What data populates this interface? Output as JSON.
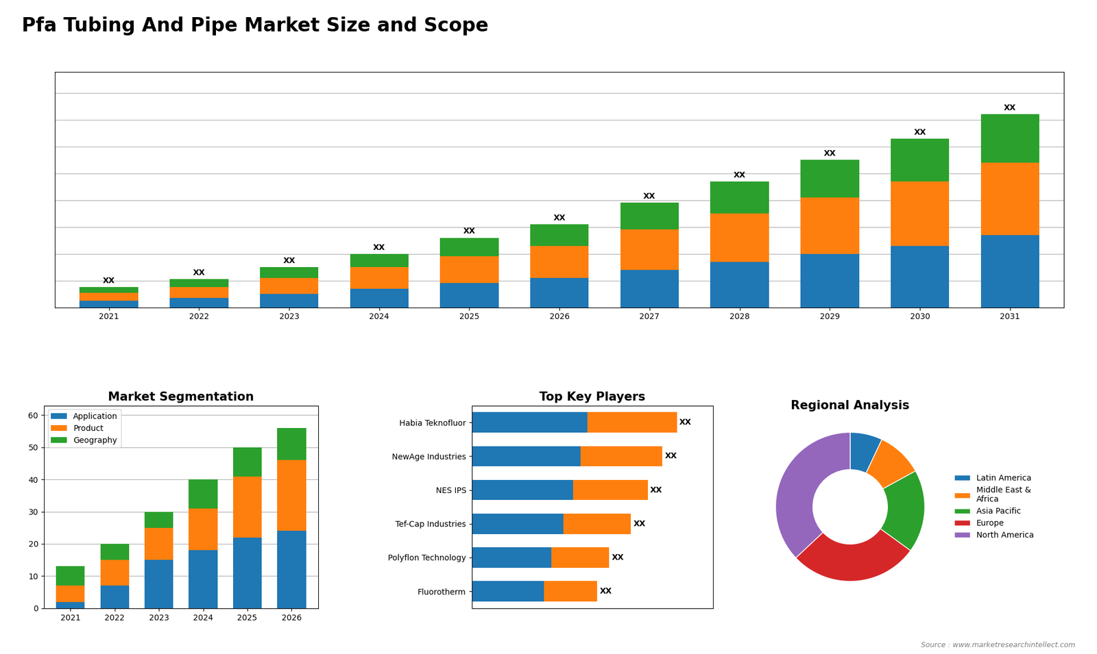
{
  "title": "Pfa Tubing And Pipe Market Size and Scope",
  "annotations": [
    "Source : www.marketresearchintellect.com"
  ],
  "chart_data": [
    {
      "type": "bar",
      "stacked": true,
      "categories": [
        "2021",
        "2022",
        "2023",
        "2024",
        "2025",
        "2026",
        "2027",
        "2028",
        "2029",
        "2030",
        "2031"
      ],
      "series": [
        {
          "values": [
            2.5,
            3.5,
            5,
            7,
            9,
            11,
            14,
            17,
            20,
            23,
            27
          ]
        },
        {
          "values": [
            3,
            4,
            6,
            8,
            10,
            12,
            15,
            18,
            21,
            24,
            27
          ]
        },
        {
          "values": [
            2,
            3,
            4,
            5,
            7,
            8,
            10,
            12,
            14,
            16,
            18
          ],
          "value_labels": [
            "XX",
            "XX",
            "XX",
            "XX",
            "XX",
            "XX",
            "XX",
            "XX",
            "XX",
            "XX",
            "XX"
          ]
        }
      ],
      "ylim": [
        0,
        87.84
      ],
      "yticks": [
        0,
        10,
        20,
        30,
        40,
        50,
        60,
        70,
        80
      ],
      "grid": true,
      "tick_labels": "x"
    },
    {
      "type": "bar",
      "title": "Market Segmentation",
      "stacked": true,
      "categories": [
        "2021",
        "2022",
        "2023",
        "2024",
        "2025",
        "2026"
      ],
      "series": [
        {
          "name": "Application",
          "values": [
            2,
            7,
            15,
            18,
            22,
            24
          ]
        },
        {
          "name": "Product",
          "values": [
            5,
            8,
            10,
            13,
            19,
            22
          ]
        },
        {
          "name": "Geography",
          "values": [
            6,
            5,
            5,
            9,
            9,
            10
          ]
        }
      ],
      "ylim": [
        0,
        63
      ],
      "yticks": [
        0,
        10,
        20,
        30,
        40,
        50,
        60
      ],
      "grid": true,
      "legend": "upper left"
    },
    {
      "type": "bar",
      "title": "Top Key Players",
      "orientation": "horizontal",
      "stacked": true,
      "categories": [
        "Habia Teknofluor",
        "NewAge Industries",
        "NES IPS",
        "Tef-Cap Industries",
        "Polyflon Technology",
        "Fluorotherm"
      ],
      "series": [
        {
          "values": [
            48,
            45,
            42,
            38,
            33,
            30
          ]
        },
        {
          "values": [
            37,
            34,
            31,
            28,
            24,
            22
          ],
          "value_labels": [
            "XX",
            "XX",
            "XX",
            "XX",
            "XX",
            "XX"
          ]
        }
      ],
      "xlim": [
        0,
        100
      ],
      "tick_labels": "y",
      "grid": false
    },
    {
      "type": "donut",
      "title": "Regional Analysis",
      "categories": [
        "Latin America",
        "Middle East &\nAfrica",
        "Asia Pacific",
        "Europe",
        "North America"
      ],
      "values": [
        7,
        10,
        18,
        28,
        37
      ],
      "legend": "center left"
    }
  ]
}
